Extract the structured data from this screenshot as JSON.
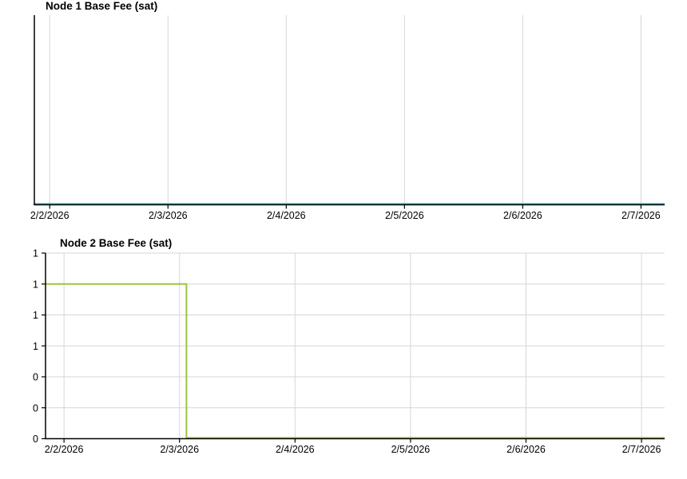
{
  "colors": {
    "background": "#FFFFFF",
    "axis": "#000000",
    "grid": "#D6D6D6",
    "text": "#000000",
    "node1_line": "#18AEC0",
    "node2_line": "#9CC63C"
  },
  "chart_data": [
    {
      "type": "line",
      "title": "Node 1 Base Fee (sat)",
      "xlabel": "",
      "ylabel": "",
      "x_tick_labels": [
        "2/2/2026",
        "2/3/2026",
        "2/4/2026",
        "2/5/2026",
        "2/6/2026",
        "2/7/2026"
      ],
      "x_tick_values": [
        0,
        1,
        2,
        3,
        4,
        5
      ],
      "x_unit": "days since 2/2/2026",
      "x_domain": [
        -0.13,
        5.2
      ],
      "y_domain": [
        0,
        1
      ],
      "y_ticks": [],
      "grid": {
        "vertical": true,
        "horizontal": false
      },
      "legend": "none",
      "series": [
        {
          "name": "Node 1 Base Fee (sat)",
          "color": "#18AEC0",
          "points": [
            [
              -0.13,
              0
            ],
            [
              5.2,
              0
            ]
          ]
        }
      ]
    },
    {
      "type": "line",
      "title": "Node 2 Base Fee (sat)",
      "xlabel": "",
      "ylabel": "",
      "x_tick_labels": [
        "2/2/2026",
        "2/3/2026",
        "2/4/2026",
        "2/5/2026",
        "2/6/2026",
        "2/7/2026"
      ],
      "x_tick_values": [
        0,
        1,
        2,
        3,
        4,
        5
      ],
      "x_unit": "days since 2/2/2026",
      "x_domain": [
        -0.16,
        5.2
      ],
      "y_domain": [
        0,
        1.2
      ],
      "y_ticks": [
        {
          "value": 1.2,
          "label": "1"
        },
        {
          "value": 1.0,
          "label": "1"
        },
        {
          "value": 0.8,
          "label": "1"
        },
        {
          "value": 0.6,
          "label": "1"
        },
        {
          "value": 0.4,
          "label": "0"
        },
        {
          "value": 0.2,
          "label": "0"
        },
        {
          "value": 0.0,
          "label": "0"
        }
      ],
      "grid": {
        "vertical": true,
        "horizontal": true
      },
      "legend": "none",
      "series": [
        {
          "name": "Node 2 Base Fee (sat)",
          "color": "#9CC63C",
          "points": [
            [
              -0.16,
              1
            ],
            [
              1.06,
              1
            ],
            [
              1.06,
              0
            ],
            [
              5.2,
              0
            ]
          ]
        }
      ]
    }
  ]
}
